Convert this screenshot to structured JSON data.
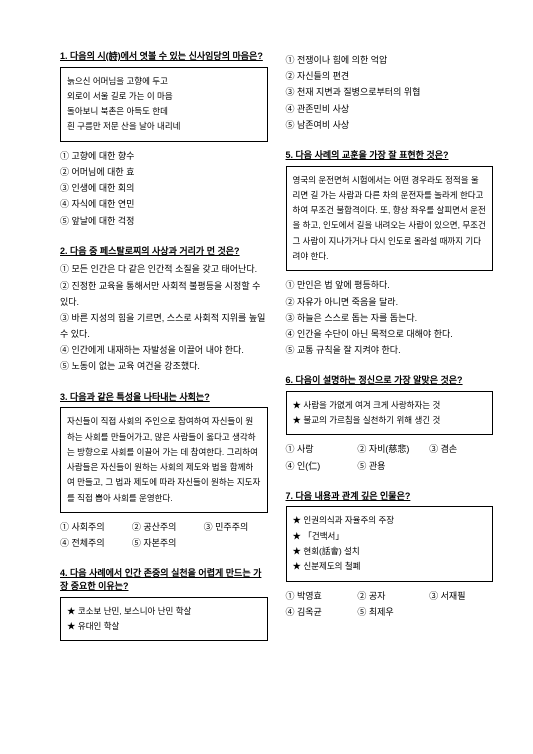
{
  "q1": {
    "title": "1. 다음의 시(詩)에서 엿볼 수 있는 신사임당의 마음은?",
    "poem": [
      "늙으신 어머님을 고향에 두고",
      "외로이 서울 길로 가는 이 마음",
      "돌아보니 북촌은 아득도 한데",
      "흰 구름만 저문 산을 날아 내리네"
    ],
    "opts": [
      "① 고향에 대한 향수",
      "② 어머님에 대한 효",
      "③ 인생에 대한 회의",
      "④ 자식에 대한 연민",
      "⑤ 앞날에 대한 걱정"
    ]
  },
  "q2": {
    "title": "2. 다음 중 페스탈로찌의 사상과 거리가 먼 것은?",
    "opts": [
      "① 모든 인간은 다 같은 인간적 소질을 갖고 태어난다.",
      "② 진정한 교육을 통해서만 사회적 불평등을 시정할 수 있다.",
      "③ 바른 지성의 힘을 기르면, 스스로 사회적 지위를 높일 수 있다.",
      "④ 인간에게 내재하는 자발성을 이끌어 내야 한다.",
      "⑤ 노동이 없는 교육 여건을 강조했다."
    ]
  },
  "q3": {
    "title": "3. 다음과 같은 특성을 나타내는 사회는?",
    "box": "자신들이 직접 사회의 주인으로 참여하여 자신들이 원하는 사회를 만들어가고, 많은 사람들이 옳다고 생각하는 방향으로 사회를 이끌어 가는 데 참여한다. 그리하여 사람들은 자신들이 원하는 사회의 제도와 법을 함께하여 만들고, 그 법과 제도에 따라 자신들이 원하는 지도자를 직접 뽑아 사회를 운영한다.",
    "opts_row1": [
      "① 사회주의",
      "② 공산주의",
      "③ 민주주의"
    ],
    "opts_row2": [
      "④ 전체주의",
      "⑤ 자본주의"
    ]
  },
  "q4": {
    "title": "4. 다음 사례에서 인간 존중의 실천을 어렵게 만드는 가장 중요한 이유는?",
    "box": [
      "코소보 난민, 보스니아 난민 학살",
      "유대인 학살"
    ],
    "opts": [
      "① 전쟁이나 힘에 의한 억압",
      "② 자신들의 편견",
      "③ 천재 지변과 질병으로부터의 위협",
      "④ 관존민비 사상",
      "⑤ 남존여비 사상"
    ]
  },
  "q5": {
    "title": "5. 다음 사례의 교훈을 가장 잘 표현한 것은?",
    "box": "영국의 운전면허 시험에서는 어떤 경우라도 정적을 울리면 길 가는 사람과 다른 차의 운전자를 놀라게 한다고 하여 무조건 불합격이다. 또, 향상 좌우를 살피면서 운전을 하고, 인도에서 길을 내려오는 사람이 있으면, 무조건 그 사람이 지나가거나 다시 인도로 올라설 때까지 기다려야 한다.",
    "opts": [
      "① 만인은 법 앞에 평등하다.",
      "② 자유가 아니면 죽음을 달라.",
      "③ 하늘은 스스로 돕는 자를 돕는다.",
      "④ 인간을 수단이 아닌 목적으로 대해야 한다.",
      "⑤ 교통 규칙을 잘 지켜야 한다."
    ]
  },
  "q6": {
    "title": "6. 다음이 설명하는 정신으로 가장 알맞은 것은?",
    "box": [
      "사람을 가엾게 여겨 크게 사랑하자는 것",
      "불교의 가르침을 실천하기 위해 생긴 것"
    ],
    "opts_row1": [
      "① 사랑",
      "② 자비(慈悲)",
      "③ 겸손"
    ],
    "opts_row2": [
      "④ 인(仁)",
      "⑤ 관용"
    ]
  },
  "q7": {
    "title": "7. 다음 내용과 관계 깊은 인물은?",
    "box": [
      "인권의식과 자율주의 주장",
      "「건백서」",
      "현회(話會) 설치",
      "신분제도의 철폐"
    ],
    "opts_row1": [
      "① 박영효",
      "② 공자",
      "③ 서재필"
    ],
    "opts_row2": [
      "④ 김옥균",
      "⑤ 최제우"
    ]
  }
}
